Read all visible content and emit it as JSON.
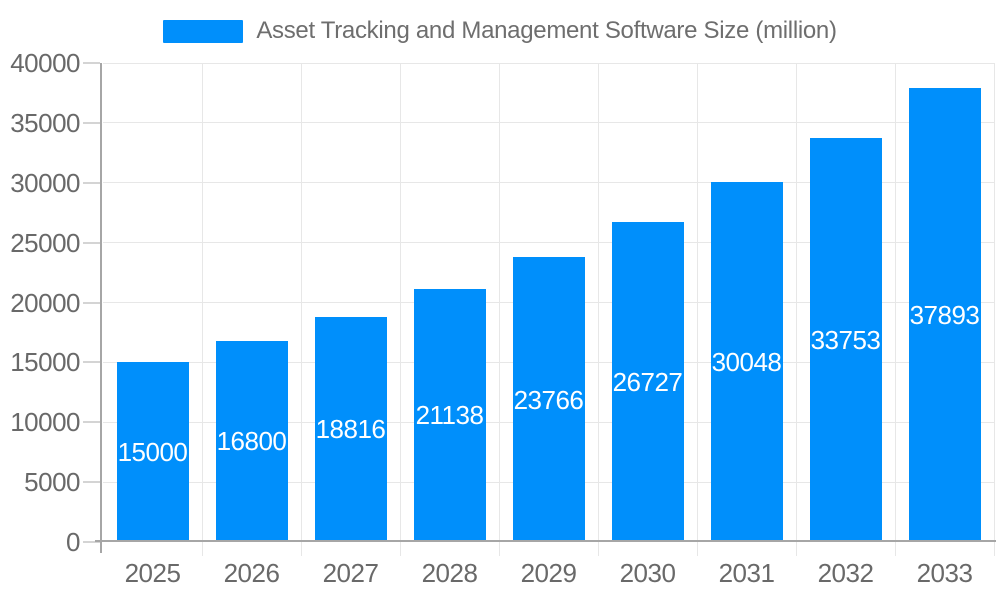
{
  "legend": {
    "label": "Asset Tracking and Management Software Size (million)",
    "swatch_color": "#008FFB"
  },
  "chart_data": {
    "type": "bar",
    "title": "Asset Tracking and Management Software Size (million)",
    "categories": [
      "2025",
      "2026",
      "2027",
      "2028",
      "2029",
      "2030",
      "2031",
      "2032",
      "2033"
    ],
    "series": [
      {
        "name": "Asset Tracking and Management Software Size (million)",
        "color": "#008FFB",
        "values": [
          15000,
          16800,
          18816,
          21138,
          23766,
          26727,
          30048,
          33753,
          37893
        ]
      }
    ],
    "data_labels_shown": true,
    "xlabel": "",
    "ylabel": "",
    "ylim": [
      0,
      40000
    ],
    "yticks": [
      0,
      5000,
      10000,
      15000,
      20000,
      25000,
      30000,
      35000,
      40000
    ],
    "grid": true,
    "legend_position": "top",
    "colors": {
      "bar": "#008FFB",
      "grid": "#E7E7E7",
      "tick": "#D4D4D4",
      "axis_line": "#A6A6A6",
      "axis_text": "#696969",
      "legend_text": "#6E6E6E",
      "value_label": "#FFFFFF"
    }
  }
}
